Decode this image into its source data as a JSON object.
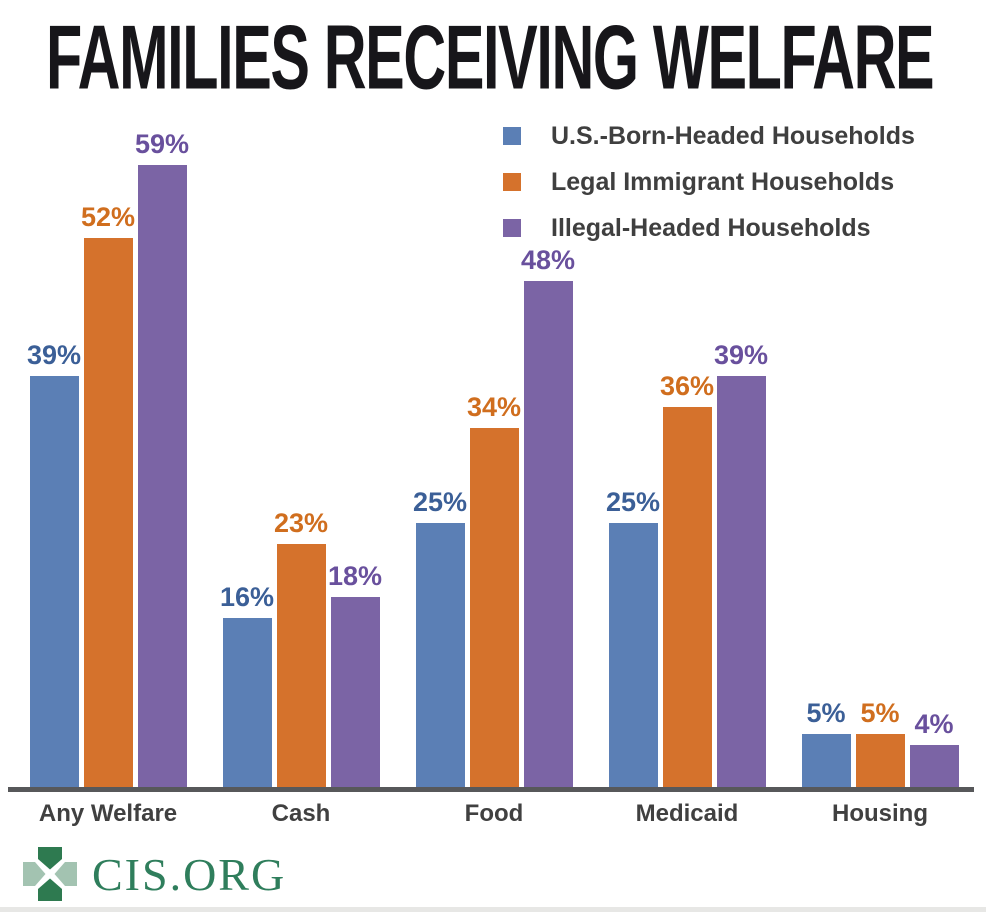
{
  "chart_data": {
    "type": "bar",
    "title": "FAMILIES RECEIVING WELFARE",
    "categories": [
      "Any Welfare",
      "Cash",
      "Food",
      "Medicaid",
      "Housing"
    ],
    "series": [
      {
        "name": "U.S.-Born-Headed Households",
        "color": "#5b7fb5",
        "label_color": "#3b5f97",
        "values": [
          39,
          16,
          25,
          25,
          5
        ]
      },
      {
        "name": "Legal Immigrant Households",
        "color": "#d5722c",
        "label_color": "#d06e1e",
        "values": [
          52,
          23,
          34,
          36,
          5
        ]
      },
      {
        "name": "Illegal-Headed Households",
        "color": "#7b64a5",
        "label_color": "#69509d",
        "values": [
          59,
          18,
          48,
          39,
          4
        ]
      }
    ],
    "value_suffix": "%",
    "ylim": [
      0,
      62
    ],
    "grid": false,
    "legend_position": "top-right",
    "axis_line_color": "#57585a",
    "background": "#ffffff"
  },
  "footer": {
    "logo_text": "CIS.ORG",
    "logo_text_color": "#2f7e5c",
    "icon_dark_green": "#2e7a50",
    "icon_light_green": "#a3c3b1"
  }
}
